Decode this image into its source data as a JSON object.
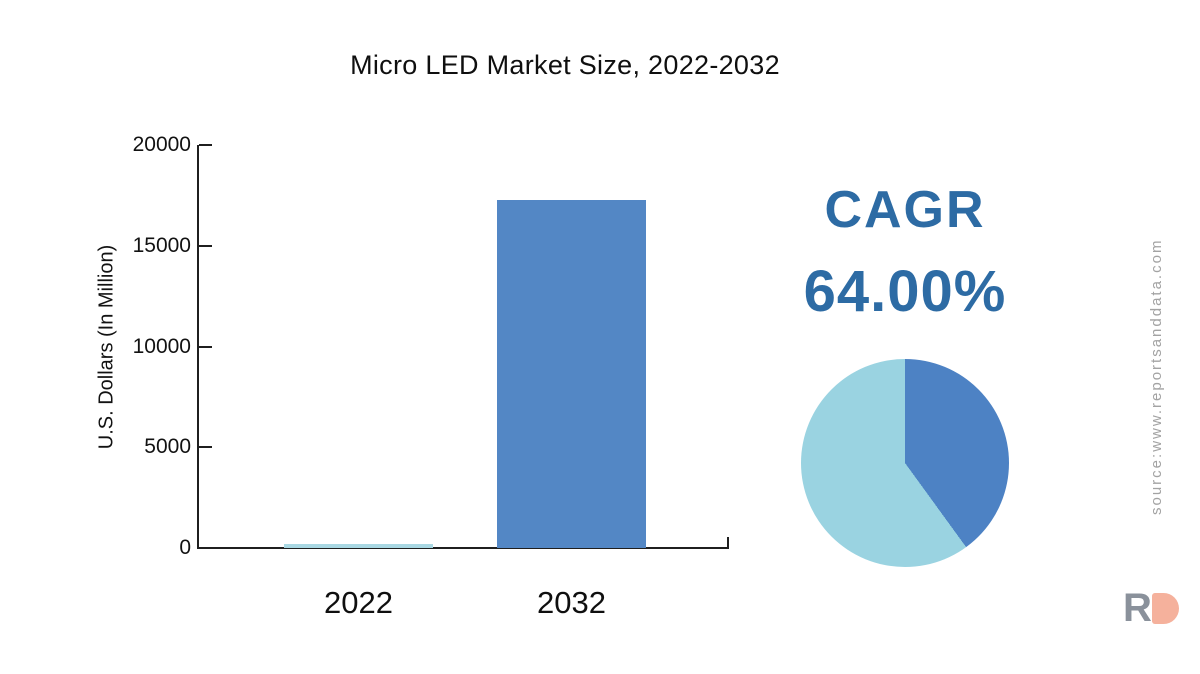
{
  "title": "Micro LED Market Size, 2022-2032",
  "cagr": {
    "label": "CAGR",
    "value": "64.00%"
  },
  "watermark": {
    "source_text": "source:www.reportsanddata.com",
    "logo_letter": "R"
  },
  "colors": {
    "cagr_blue": "#2d6ba4",
    "axis_black": "#1f1f1f",
    "logo_gray": "#8a919b",
    "logo_salmon": "#f5b19c"
  },
  "chart_data": [
    {
      "type": "bar",
      "title": "Micro LED Market Size, 2022-2032",
      "categories": [
        "2022",
        "2032"
      ],
      "values": [
        200,
        17250
      ],
      "xlabel": "",
      "ylabel": "U.S. Dollars (In Million)",
      "ylim": [
        0,
        20000
      ],
      "yticks": [
        0,
        5000,
        10000,
        15000,
        20000
      ],
      "bar_colors": [
        "#a9d8e3",
        "#5387c5"
      ],
      "grid": false,
      "legend": false
    },
    {
      "type": "pie",
      "annotation": "CAGR 64.00%",
      "slice_names": [
        "dark-blue-slice",
        "light-blue-slice"
      ],
      "values": [
        40,
        60
      ],
      "colors": [
        "#4d82c4",
        "#9ad3e1"
      ],
      "start_angle_deg": 0,
      "direction": "clockwise",
      "legend": false
    }
  ]
}
